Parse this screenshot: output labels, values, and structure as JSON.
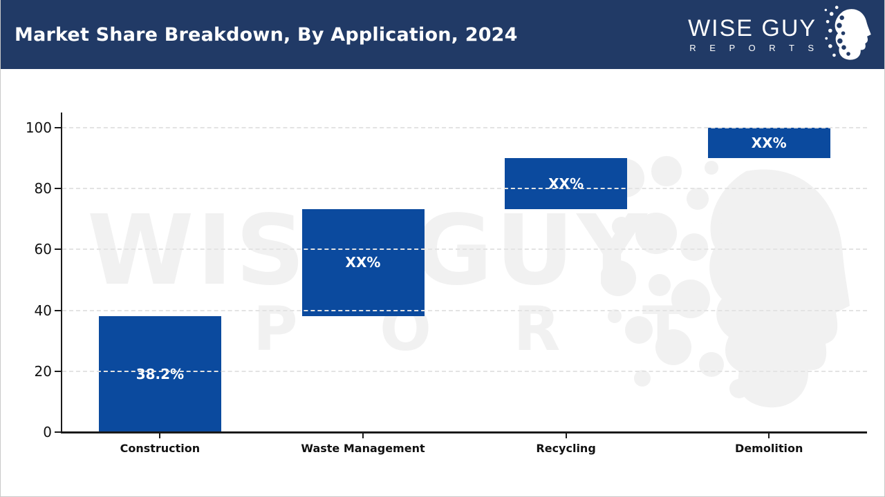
{
  "header": {
    "title": "Market Share Breakdown, By Application, 2024",
    "bg_color": "#213a66",
    "logo": {
      "line1": "WISE GUY",
      "line2": "R E P O R T S"
    }
  },
  "watermark": {
    "line1": "WISE GUY",
    "line2": "P O R T S"
  },
  "chart_data": {
    "type": "bar",
    "subtype": "waterfall",
    "title": "Market Share Breakdown, By Application, 2024",
    "categories": [
      "Construction",
      "Waste Management",
      "Recycling",
      "Demolition"
    ],
    "segments": [
      {
        "category": "Construction",
        "start": 0,
        "end": 38.2,
        "label": "38.2%"
      },
      {
        "category": "Waste Management",
        "start": 38.2,
        "end": 73.2,
        "label": "XX%"
      },
      {
        "category": "Recycling",
        "start": 73.2,
        "end": 90,
        "label": "XX%"
      },
      {
        "category": "Demolition",
        "start": 90,
        "end": 100,
        "label": "XX%"
      }
    ],
    "yticks": [
      0,
      20,
      40,
      60,
      80,
      100
    ],
    "ylim": [
      0,
      105
    ],
    "xlabel": "",
    "ylabel": "",
    "grid": "horizontal-dashed",
    "legend": "none",
    "bar_color": "#0b4a9e",
    "bar_label_color": "#ffffff",
    "axis_color": "#1a1a1a"
  }
}
